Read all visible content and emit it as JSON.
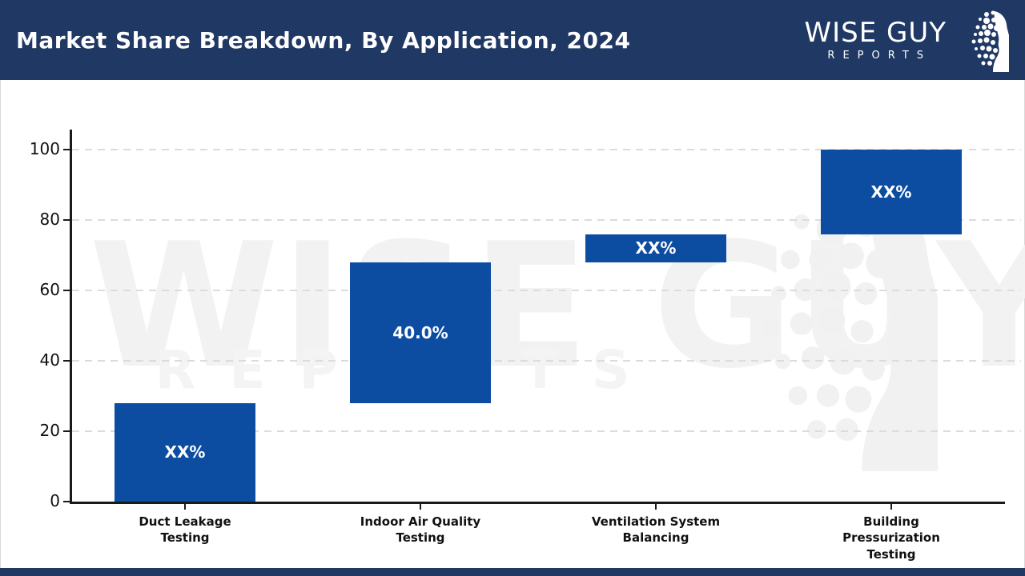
{
  "header": {
    "title": "Market Share Breakdown, By Application, 2024",
    "bg_color": "#203864",
    "logo": {
      "line1": "WISE GUY",
      "line2": "REPORTS"
    }
  },
  "watermark": {
    "line1": "WISE GUY",
    "line2": "REPORTS"
  },
  "chart_data": {
    "type": "bar",
    "subtype": "floating-waterfall",
    "title": "Market Share Breakdown, By Application, 2024",
    "categories": [
      "Duct Leakage\nTesting",
      "Indoor Air Quality\nTesting",
      "Ventilation System\nBalancing",
      "Building\nPressurization\nTesting"
    ],
    "bars": [
      {
        "start": 0,
        "end": 28,
        "label": "XX%"
      },
      {
        "start": 28,
        "end": 68,
        "label": "40.0%"
      },
      {
        "start": 68,
        "end": 76,
        "label": "XX%"
      },
      {
        "start": 76,
        "end": 100,
        "label": "XX%"
      }
    ],
    "yticks": [
      0,
      20,
      40,
      60,
      80,
      100
    ],
    "ylim": [
      0,
      105
    ],
    "xlabel": "",
    "ylabel": "",
    "grid": "horizontal-dashed",
    "legend": "none",
    "bar_color": "#0c4da2",
    "bar_label_color": "#ffffff"
  },
  "footer": {
    "bg_color": "#203864"
  }
}
